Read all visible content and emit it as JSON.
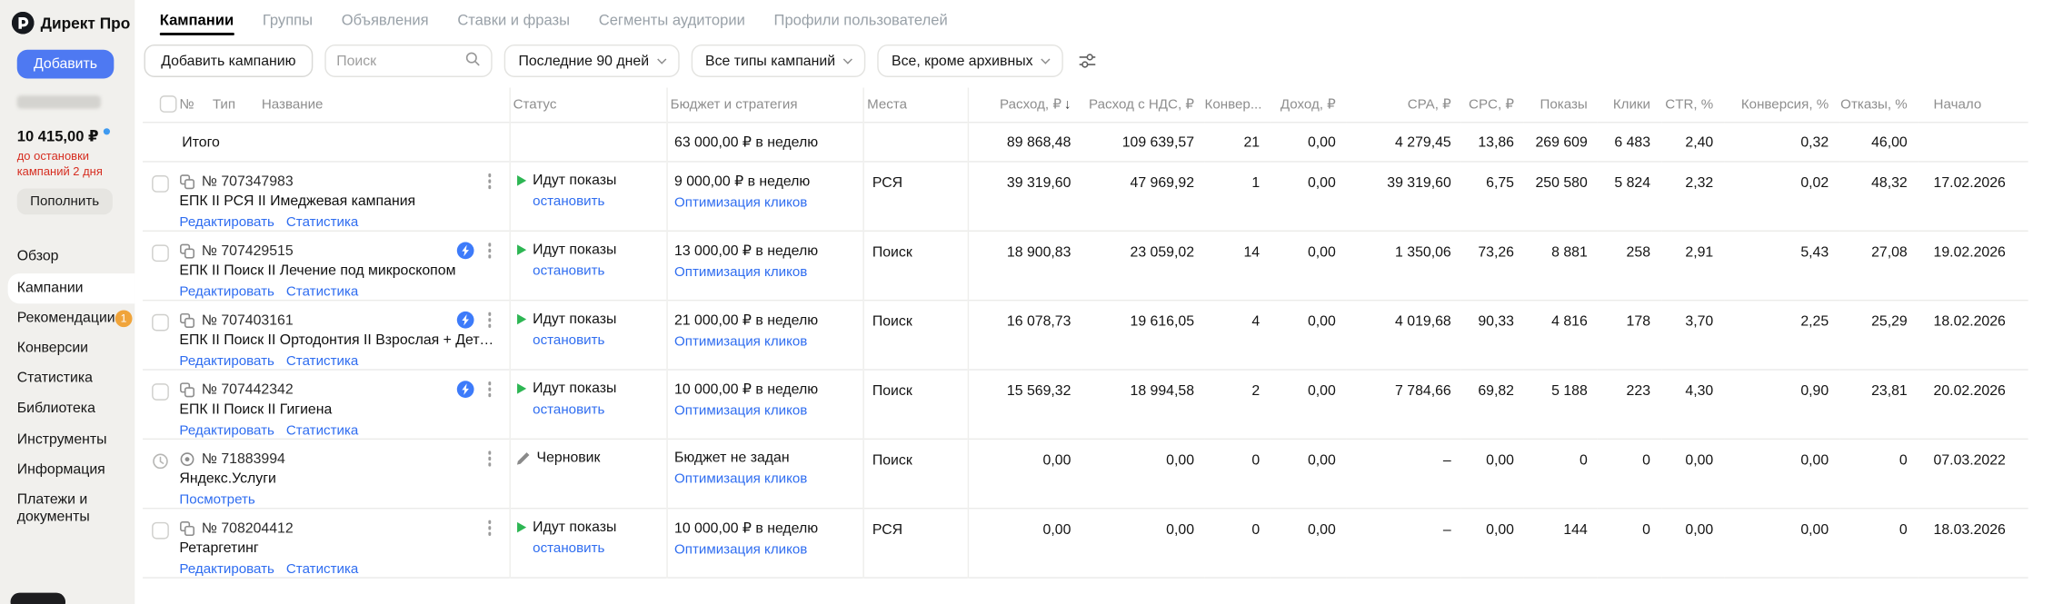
{
  "app": {
    "logo_text": "Директ Про"
  },
  "colors": {
    "accent_blue": "#4e79f2",
    "link_blue": "#2f6df0",
    "status_green": "#2db653",
    "warning_red": "#d62e21",
    "badge_orange": "#f0a43a",
    "muted_value": "#b9b9b7"
  },
  "sidebar": {
    "add_button": "Добавить",
    "balance": "10 415,00 ₽",
    "balance_warning": "до остановки кампаний 2 дня",
    "topup_button": "Пополнить",
    "items": [
      {
        "key": "overview",
        "label": "Обзор",
        "active": false
      },
      {
        "key": "campaigns",
        "label": "Кампании",
        "active": true
      },
      {
        "key": "recommendations",
        "label": "Рекомендации",
        "active": false,
        "badge": "1"
      },
      {
        "key": "conversions",
        "label": "Конверсии",
        "active": false
      },
      {
        "key": "statistics",
        "label": "Статистика",
        "active": false
      },
      {
        "key": "library",
        "label": "Библиотека",
        "active": false
      },
      {
        "key": "tools",
        "label": "Инструменты",
        "active": false
      },
      {
        "key": "information",
        "label": "Информация",
        "active": false
      },
      {
        "key": "payments",
        "label": "Платежи и документы",
        "active": false
      }
    ]
  },
  "tabs": [
    {
      "key": "campaigns",
      "label": "Кампании",
      "active": true
    },
    {
      "key": "groups",
      "label": "Группы",
      "active": false
    },
    {
      "key": "ads",
      "label": "Объявления",
      "active": false
    },
    {
      "key": "bids",
      "label": "Ставки и фразы",
      "active": false
    },
    {
      "key": "segments",
      "label": "Сегменты аудитории",
      "active": false
    },
    {
      "key": "profiles",
      "label": "Профили пользователей",
      "active": false
    }
  ],
  "toolbar": {
    "add_campaign_button": "Добавить кампанию",
    "search_placeholder": "Поиск",
    "filters": [
      {
        "key": "period",
        "value": "Последние 90 дней"
      },
      {
        "key": "campaign-type",
        "value": "Все типы кампаний"
      },
      {
        "key": "archive",
        "value": "Все, кроме архивных"
      }
    ]
  },
  "table": {
    "headers": {
      "num": "№",
      "type": "Тип",
      "name": "Название",
      "status": "Статус",
      "budget": "Бюджет и стратегия",
      "places": "Места",
      "metrics": [
        "Расход, ₽",
        "Расход с НДС, ₽",
        "Конвер...",
        "Доход, ₽",
        "CPA, ₽",
        "CPC, ₽",
        "Показы",
        "Клики",
        "CTR, %",
        "Конверсия, %",
        "Отказы, %",
        "Начало"
      ],
      "sort_arrow": "↓"
    },
    "totals": {
      "label": "Итого",
      "budget": "63 000,00 ₽ в неделю",
      "metrics": [
        "89 868,48",
        "109 639,57",
        "21",
        "0,00",
        "4 279,45",
        "13,86",
        "269 609",
        "6 483",
        "2,40",
        "0,32",
        "46,00",
        ""
      ]
    },
    "rows": [
      {
        "id": "№ 707347983",
        "type_icon": "epk-campaign-icon",
        "marker": "checkbox",
        "name": "ЕПК II РСЯ II Имеджевая кампания",
        "links": [
          "Редактировать",
          "Статистика"
        ],
        "auto_badge": false,
        "status": {
          "kind": "running",
          "label": "Идут показы",
          "link": "остановить"
        },
        "budget": {
          "amount": "9 000,00 ₽ в неделю",
          "strategy": "Оптимизация кликов"
        },
        "places": "РСЯ",
        "metrics": [
          "39 319,60",
          "47 969,92",
          "1",
          "0,00",
          "39 319,60",
          "6,75",
          "250 580",
          "5 824",
          "2,32",
          "0,02",
          "48,32",
          "17.02.2026"
        ]
      },
      {
        "id": "№ 707429515",
        "type_icon": "epk-campaign-icon",
        "marker": "checkbox",
        "name": "ЕПК II Поиск II Лечение под микроскопом",
        "links": [
          "Редактировать",
          "Статистика"
        ],
        "auto_badge": true,
        "status": {
          "kind": "running",
          "label": "Идут показы",
          "link": "остановить"
        },
        "budget": {
          "amount": "13 000,00 ₽ в неделю",
          "strategy": "Оптимизация кликов"
        },
        "places": "Поиск",
        "metrics": [
          "18 900,83",
          "23 059,02",
          "14",
          "0,00",
          "1 350,06",
          "73,26",
          "8 881",
          "258",
          "2,91",
          "5,43",
          "27,08",
          "19.02.2026"
        ]
      },
      {
        "id": "№ 707403161",
        "type_icon": "epk-campaign-icon",
        "marker": "checkbox",
        "name": "ЕПК II Поиск II Ортодонтия II Взрослая + Детская",
        "links": [
          "Редактировать",
          "Статистика"
        ],
        "auto_badge": true,
        "status": {
          "kind": "running",
          "label": "Идут показы",
          "link": "остановить"
        },
        "budget": {
          "amount": "21 000,00 ₽ в неделю",
          "strategy": "Оптимизация кликов"
        },
        "places": "Поиск",
        "metrics": [
          "16 078,73",
          "19 616,05",
          "4",
          "0,00",
          "4 019,68",
          "90,33",
          "4 816",
          "178",
          "3,70",
          "2,25",
          "25,29",
          "18.02.2026"
        ]
      },
      {
        "id": "№ 707442342",
        "type_icon": "epk-campaign-icon",
        "marker": "checkbox",
        "name": "ЕПК II Поиск II Гигиена",
        "links": [
          "Редактировать",
          "Статистика"
        ],
        "auto_badge": true,
        "status": {
          "kind": "running",
          "label": "Идут показы",
          "link": "остановить"
        },
        "budget": {
          "amount": "10 000,00 ₽ в неделю",
          "strategy": "Оптимизация кликов"
        },
        "places": "Поиск",
        "metrics": [
          "15 569,32",
          "18 994,58",
          "2",
          "0,00",
          "7 784,66",
          "69,82",
          "5 188",
          "223",
          "4,30",
          "0,90",
          "23,81",
          "20.02.2026"
        ]
      },
      {
        "id": "№ 71883994",
        "type_icon": "services-icon",
        "marker": "clock",
        "name": "Яндекс.Услуги",
        "links": [
          "Посмотреть"
        ],
        "auto_badge": false,
        "status": {
          "kind": "draft",
          "label": "Черновик",
          "link": null
        },
        "budget": {
          "amount": "Бюджет не задан",
          "strategy": "Оптимизация кликов"
        },
        "places": "Поиск",
        "metrics": [
          "0,00",
          "0,00",
          "0",
          "0,00",
          "–",
          "0,00",
          "0",
          "0",
          "0,00",
          "0,00",
          "0",
          "07.03.2022"
        ]
      },
      {
        "id": "№ 708204412",
        "type_icon": "epk-campaign-icon",
        "marker": "checkbox",
        "name": "Ретаргетинг",
        "links": [
          "Редактировать",
          "Статистика"
        ],
        "auto_badge": false,
        "status": {
          "kind": "running",
          "label": "Идут показы",
          "link": "остановить"
        },
        "budget": {
          "amount": "10 000,00 ₽ в неделю",
          "strategy": "Оптимизация кликов"
        },
        "places": "РСЯ",
        "metrics": [
          "0,00",
          "0,00",
          "0",
          "0,00",
          "–",
          "0,00",
          "144",
          "0",
          "0,00",
          "0,00",
          "0",
          "18.03.2026"
        ]
      }
    ]
  }
}
